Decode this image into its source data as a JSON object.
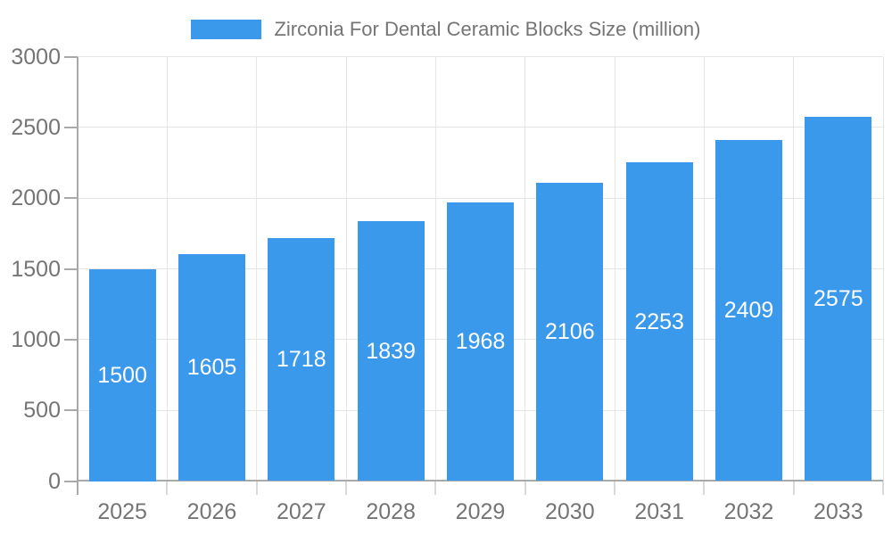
{
  "legend": {
    "label": "Zirconia For Dental Ceramic Blocks Size (million)"
  },
  "chart_data": {
    "type": "bar",
    "title": "Zirconia For Dental Ceramic Blocks Size (million)",
    "categories": [
      "2025",
      "2026",
      "2027",
      "2028",
      "2029",
      "2030",
      "2031",
      "2032",
      "2033"
    ],
    "values": [
      1500,
      1605,
      1718,
      1839,
      1968,
      2106,
      2253,
      2409,
      2575
    ],
    "xlabel": "",
    "ylabel": "",
    "ylim": [
      0,
      3000
    ],
    "yticks": [
      0,
      500,
      1000,
      1500,
      2000,
      2500,
      3000
    ],
    "grid": true,
    "legend_position": "top-center",
    "colors": {
      "bar": "#3B99EC",
      "bar_label": "#FFFFFF",
      "axis": "#A9A9A9",
      "grid": "#E6E6E6",
      "x_tick": "#D9D9D9",
      "tick_label": "#757575",
      "title": "#757575"
    }
  }
}
